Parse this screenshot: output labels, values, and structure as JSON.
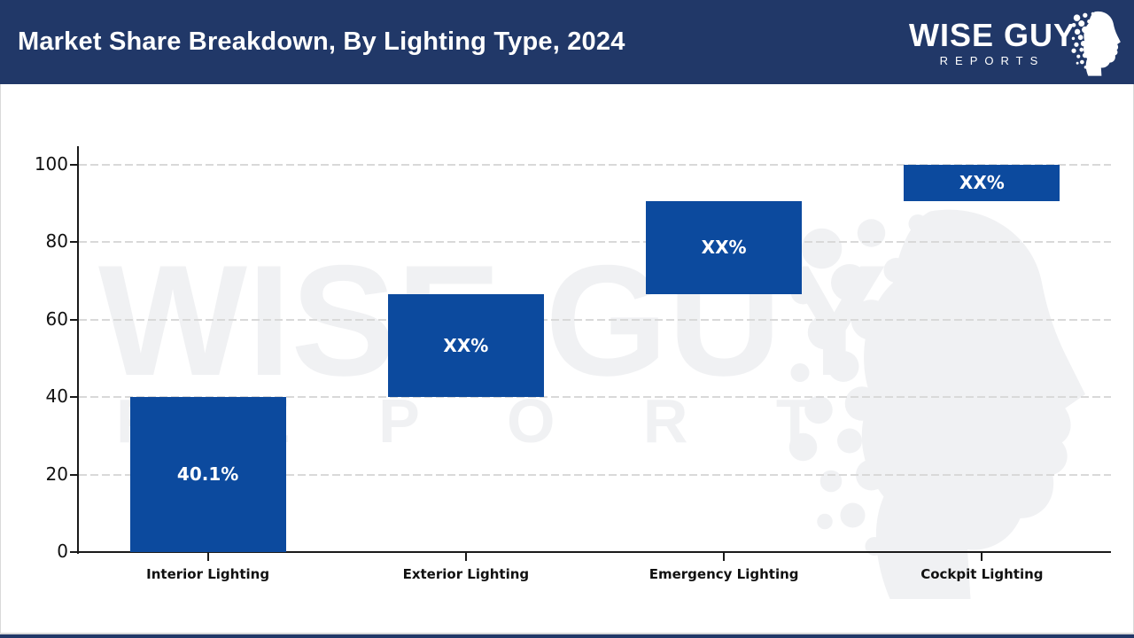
{
  "header": {
    "title": "Market Share Breakdown, By Lighting Type, 2024",
    "logo": {
      "line1": "WISE GUY",
      "line2": "REPORTS"
    }
  },
  "watermark": {
    "line1": "WISE GUY",
    "line2": "R E P O R T S"
  },
  "chart_data": {
    "type": "bar",
    "subtype": "waterfall-stacked",
    "title": "Market Share Breakdown, By Lighting Type, 2024",
    "categories": [
      "Interior Lighting",
      "Exterior Lighting",
      "Emergency Lighting",
      "Cockpit Lighting"
    ],
    "series": [
      {
        "name": "Market Share",
        "segments": [
          {
            "category": "Interior Lighting",
            "start": 0,
            "end": 40.1,
            "label": "40.1%"
          },
          {
            "category": "Exterior Lighting",
            "start": 40.1,
            "end": 66.6,
            "label": "XX%"
          },
          {
            "category": "Emergency Lighting",
            "start": 66.6,
            "end": 90.7,
            "label": "XX%"
          },
          {
            "category": "Cockpit Lighting",
            "start": 90.7,
            "end": 100,
            "label": "XX%"
          }
        ]
      }
    ],
    "ylim": [
      0,
      100
    ],
    "yticks": [
      0,
      20,
      40,
      60,
      80,
      100
    ],
    "xlabel": "",
    "ylabel": "",
    "grid": "horizontal-dashed",
    "legend": "none"
  },
  "colors": {
    "header_bg": "#213868",
    "footer_bg": "#213868",
    "bar": "#0c4a9e",
    "bar_label": "#ffffff",
    "grid": "#d9d9d9",
    "axis": "#1a1a1a",
    "watermark": "#f0f1f3",
    "title_text": "#ffffff"
  }
}
